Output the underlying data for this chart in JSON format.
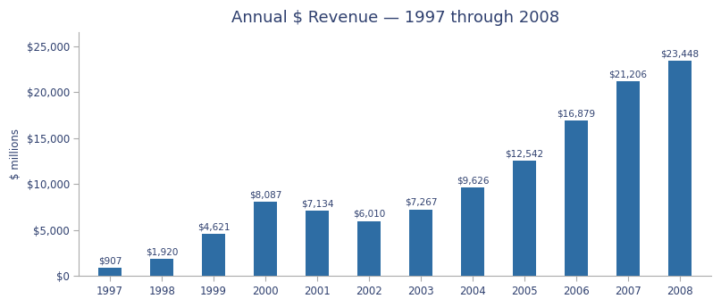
{
  "title": "Annual $ Revenue — 1997 through 2008",
  "ylabel": "$ millions",
  "categories": [
    "1997",
    "1998",
    "1999",
    "2000",
    "2001",
    "2002",
    "2003",
    "2004",
    "2005",
    "2006",
    "2007",
    "2008"
  ],
  "values": [
    907,
    1920,
    4621,
    8087,
    7134,
    6010,
    7267,
    9626,
    12542,
    16879,
    21206,
    23448
  ],
  "labels": [
    "$907",
    "$1,920",
    "$4,621",
    "$8,087",
    "$7,134",
    "$6,010",
    "$7,267",
    "$9,626",
    "$12,542",
    "$16,879",
    "$21,206",
    "$23,448"
  ],
  "bar_color": "#2E6DA4",
  "title_color": "#2E3F6E",
  "label_color": "#2E3F6E",
  "ylabel_color": "#2E3F6E",
  "xtick_color": "#2E3F6E",
  "ytick_color": "#2E3F6E",
  "spine_color": "#AAAAAA",
  "background_color": "#FFFFFF",
  "ylim": [
    0,
    26500
  ],
  "yticks": [
    0,
    5000,
    10000,
    15000,
    20000,
    25000
  ],
  "title_fontsize": 13,
  "label_fontsize": 7.5,
  "axis_fontsize": 8.5,
  "bar_width": 0.45
}
